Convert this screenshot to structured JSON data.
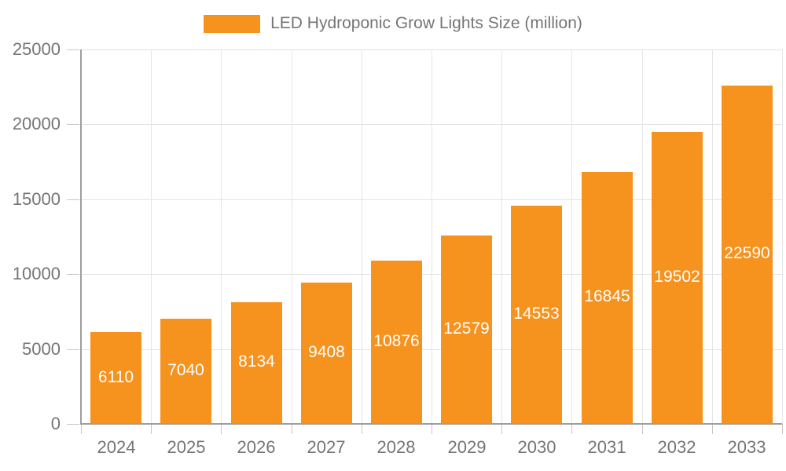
{
  "legend": {
    "label": "LED Hydroponic Grow Lights Size (million)",
    "swatch_color": "#F6921E"
  },
  "chart_data": {
    "type": "bar",
    "title": "LED Hydroponic Grow Lights Size (million)",
    "categories": [
      "2024",
      "2025",
      "2026",
      "2027",
      "2028",
      "2029",
      "2030",
      "2031",
      "2032",
      "2033"
    ],
    "values": [
      6110,
      7040,
      8134,
      9408,
      10876,
      12579,
      14553,
      16845,
      19502,
      22590
    ],
    "xlabel": "",
    "ylabel": "",
    "ylim": [
      0,
      25000
    ],
    "yticks": [
      0,
      5000,
      10000,
      15000,
      20000,
      25000
    ],
    "grid": true,
    "legend_position": "top",
    "bar_color": "#F6921E",
    "value_label_color": "#ffffff",
    "axis_text_color": "#757575"
  }
}
